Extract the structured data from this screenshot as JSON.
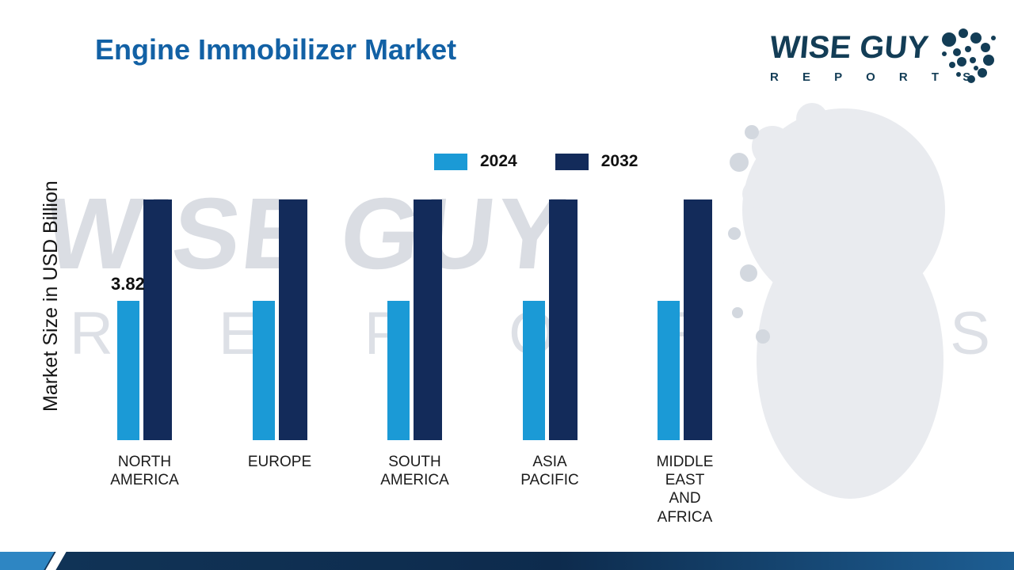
{
  "title": "Engine Immobilizer Market",
  "ylabel": "Market Size in USD Billion",
  "logo": {
    "name": "WISE GUY",
    "subtitle": "R E P O R T S"
  },
  "watermark": {
    "name": "WISE GUY",
    "subtitle": "R E P O R T S"
  },
  "colors": {
    "title": "#1261a5",
    "bar_2024": "#1b9ad6",
    "bar_2032": "#132b5a",
    "footer": "#0e2f55"
  },
  "chart_data": {
    "type": "bar",
    "title": "Engine Immobilizer Market",
    "ylabel": "Market Size in USD Billion",
    "categories": [
      "NORTH AMERICA",
      "EUROPE",
      "SOUTH AMERICA",
      "ASIA PACIFIC",
      "MIDDLE EAST AND AFRICA"
    ],
    "category_lines": [
      [
        "NORTH",
        "AMERICA"
      ],
      [
        "EUROPE"
      ],
      [
        "SOUTH",
        "AMERICA"
      ],
      [
        "ASIA",
        "PACIFIC"
      ],
      [
        "MIDDLE",
        "EAST",
        "AND",
        "AFRICA"
      ]
    ],
    "series": [
      {
        "name": "2024",
        "color": "#1b9ad6",
        "values": [
          3.82,
          3.82,
          3.82,
          3.82,
          3.82
        ]
      },
      {
        "name": "2032",
        "color": "#132b5a",
        "values": [
          6.6,
          6.6,
          6.6,
          6.6,
          6.6
        ]
      }
    ],
    "data_labels": [
      "3.82",
      "",
      "",
      "",
      ""
    ],
    "ylim": [
      0,
      7
    ],
    "grid": false,
    "legend_position": "top"
  }
}
